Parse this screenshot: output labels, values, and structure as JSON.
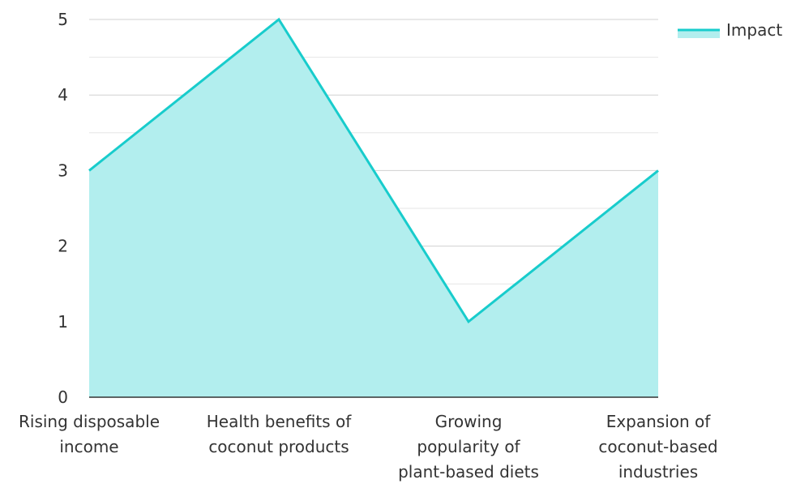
{
  "chart_data": {
    "type": "area",
    "categories": [
      [
        "Rising disposable",
        "income"
      ],
      [
        "Health benefits of",
        "coconut products"
      ],
      [
        "Growing",
        "popularity of",
        "plant-based diets"
      ],
      [
        "Expansion of",
        "coconut-based",
        "industries"
      ]
    ],
    "series": [
      {
        "name": "Impact",
        "values": [
          3,
          5,
          1,
          3
        ]
      }
    ],
    "ylim": [
      0,
      5
    ],
    "yticks": [
      "0",
      "1",
      "2",
      "3",
      "4",
      "5"
    ],
    "grid": true,
    "legend": "top-right",
    "colors": {
      "line": "#18CCCC",
      "fill": "#B2EEEE",
      "grid": "#DDDDDD",
      "axis": "#333333"
    }
  }
}
